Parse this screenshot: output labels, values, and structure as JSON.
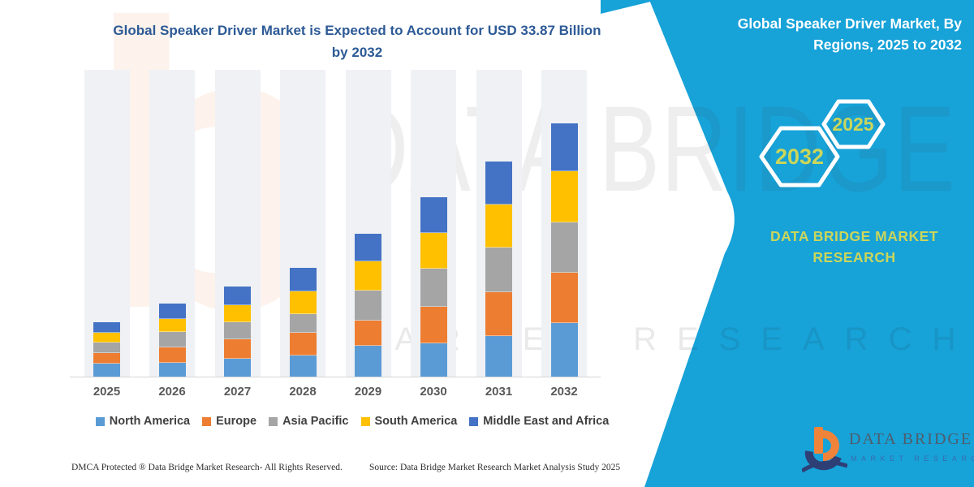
{
  "left_panel": {
    "title_line1": "Global Speaker Driver Market is Expected to Account for USD 33.87 Billion",
    "title_line2": "by 2032",
    "footer_left": "DMCA Protected ® Data Bridge Market Research-  All Rights Reserved.",
    "footer_right": "Source: Data Bridge Market Research  Market Analysis Study 2025"
  },
  "right_panel": {
    "title_line1": "Global Speaker Driver Market, By",
    "title_line2": "Regions, 2025 to 2032",
    "hexagon_back_year": "2032",
    "hexagon_front_year": "2025",
    "brand_line1": "DATA BRIDGE MARKET",
    "brand_line2": "RESEARCH",
    "logo_name": "DATA BRIDGE",
    "logo_subtitle": "MARKET RESEARCH"
  },
  "watermarks": {
    "letter": "b",
    "line1": "DATA BRIDGE",
    "line2": "MARKET RESEARCH"
  },
  "colors": {
    "panel_cyan": "#17A2D8",
    "title_blue": "#2D5A96",
    "axis_label_gray": "#595959",
    "band_gray": "#EFF1F5",
    "hex_year_green": "#CBD65A",
    "logo_orange": "#F0833A",
    "logo_navy": "#2E3F76"
  },
  "chart_data": {
    "type": "bar",
    "stacked": true,
    "title": "Global Speaker Driver Market is Expected to Account for USD 33.87 Billion by 2032",
    "unit": "USD Billion",
    "categories": [
      "2025",
      "2026",
      "2027",
      "2028",
      "2029",
      "2030",
      "2031",
      "2032"
    ],
    "series": [
      {
        "name": "North America",
        "color": "#5B9BD5",
        "values": [
          1.74,
          1.85,
          2.39,
          2.82,
          4.13,
          4.45,
          5.43,
          7.17
        ]
      },
      {
        "name": "Europe",
        "color": "#ED7D31",
        "values": [
          1.41,
          2.06,
          2.61,
          3.04,
          3.37,
          4.89,
          5.86,
          6.73
        ]
      },
      {
        "name": "Asia Pacific",
        "color": "#A5A5A5",
        "values": [
          1.41,
          2.06,
          2.28,
          2.5,
          4.02,
          5.1,
          5.97,
          6.73
        ]
      },
      {
        "name": "South America",
        "color": "#FFC000",
        "values": [
          1.3,
          1.74,
          2.28,
          3.04,
          3.91,
          4.78,
          5.75,
          6.84
        ]
      },
      {
        "name": "Middle East and Africa",
        "color": "#4472C4",
        "values": [
          1.41,
          2.06,
          2.5,
          3.15,
          3.69,
          4.78,
          5.75,
          6.4
        ]
      }
    ],
    "totals": [
      7.27,
      9.77,
      12.06,
      14.55,
      19.12,
      24.0,
      28.76,
      33.87
    ],
    "annotated_value_2032": 33.87,
    "ylim": [
      0,
      34
    ],
    "gridlines": false,
    "y_axis_visible": false,
    "legend_position": "bottom"
  }
}
